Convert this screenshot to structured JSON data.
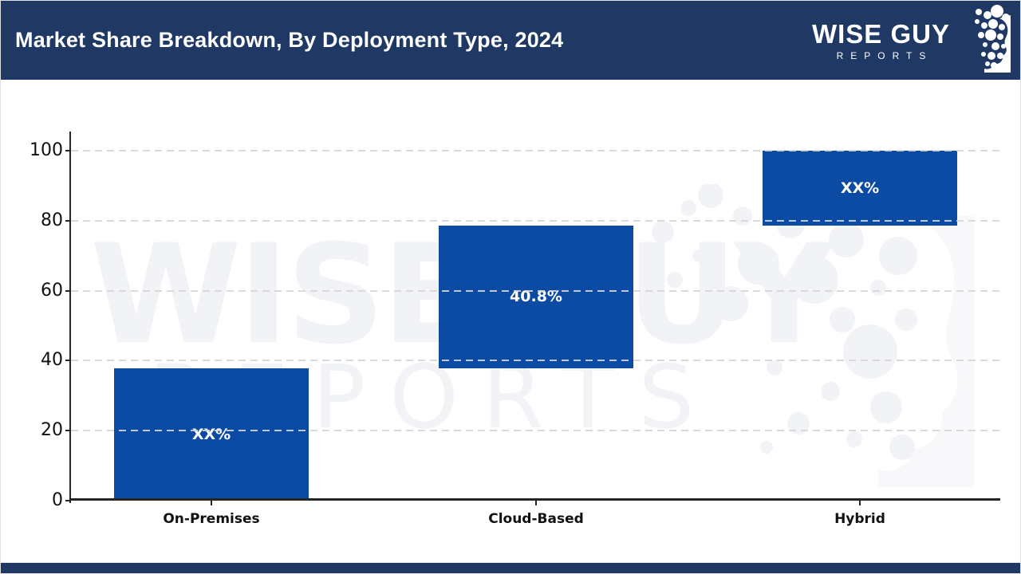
{
  "header": {
    "title": "Market Share Breakdown, By Deployment Type, 2024",
    "bg_color": "#1F3864",
    "logo": {
      "line1": "WISE GUY",
      "line2": "REPORTS"
    }
  },
  "watermark": {
    "line1": "WISE GUY",
    "line2": "REPORTS",
    "color": "#f2f3f6"
  },
  "chart_data": {
    "type": "bar",
    "subtype": "waterfall",
    "title": "Market Share Breakdown, By Deployment Type, 2024",
    "categories": [
      "On-Premises",
      "Cloud-Based",
      "Hybrid"
    ],
    "segments": [
      {
        "category": "On-Premises",
        "start": 0,
        "end": 37.8,
        "value": 37.8,
        "label": "XX%"
      },
      {
        "category": "Cloud-Based",
        "start": 37.8,
        "end": 78.6,
        "value": 40.8,
        "label": "40.8%"
      },
      {
        "category": "Hybrid",
        "start": 78.6,
        "end": 100,
        "value": 21.4,
        "label": "XX%"
      }
    ],
    "bar_color": "#0B4BA3",
    "label_color": "#FFFFFF",
    "xlabel": "",
    "ylabel": "",
    "ylim": [
      0,
      100
    ],
    "yticks": [
      0,
      20,
      40,
      60,
      80,
      100
    ],
    "grid": "horizontal dashed, drawn over bars",
    "legend": "none"
  },
  "footer": {
    "bg_color": "#1F3864"
  }
}
